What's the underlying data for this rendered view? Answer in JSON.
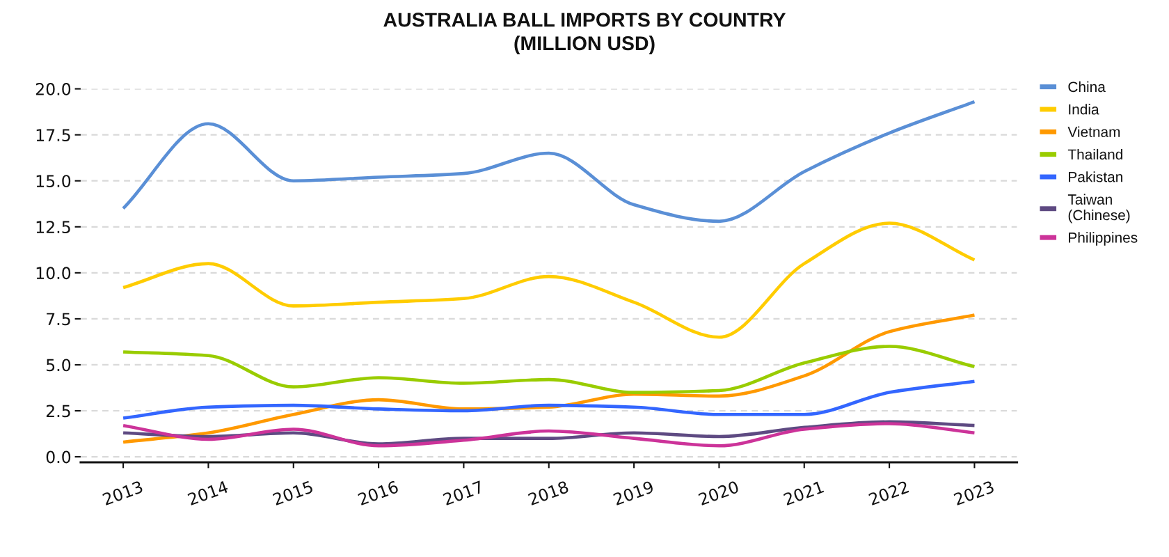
{
  "chart_data": {
    "type": "line",
    "title": "AUSTRALIA BALL IMPORTS BY COUNTRY\n(MILLION USD)",
    "categories": [
      "2013",
      "2014",
      "2015",
      "2016",
      "2017",
      "2018",
      "2019",
      "2020",
      "2021",
      "2022",
      "2023"
    ],
    "series": [
      {
        "name": "China",
        "color": "#5a8fd6",
        "values": [
          13.5,
          18.1,
          15.0,
          15.2,
          15.4,
          16.5,
          13.7,
          12.8,
          15.5,
          17.6,
          19.3
        ]
      },
      {
        "name": "India",
        "color": "#ffcc00",
        "values": [
          9.2,
          10.5,
          8.2,
          8.4,
          8.6,
          9.8,
          8.4,
          6.5,
          10.5,
          12.7,
          10.7
        ]
      },
      {
        "name": "Vietnam",
        "color": "#ff9900",
        "values": [
          0.8,
          1.3,
          2.3,
          3.1,
          2.6,
          2.7,
          3.4,
          3.3,
          4.4,
          6.8,
          7.7
        ]
      },
      {
        "name": "Thailand",
        "color": "#99cc00",
        "values": [
          5.7,
          5.5,
          3.8,
          4.3,
          4.0,
          4.2,
          3.5,
          3.6,
          5.1,
          6.0,
          4.9
        ]
      },
      {
        "name": "Pakistan",
        "color": "#3366ff",
        "values": [
          2.1,
          2.7,
          2.8,
          2.6,
          2.5,
          2.8,
          2.7,
          2.3,
          2.3,
          3.5,
          4.1
        ]
      },
      {
        "name": "Taiwan\n(Chinese)",
        "color": "#5e4a82",
        "values": [
          1.3,
          1.1,
          1.3,
          0.7,
          1.0,
          1.0,
          1.3,
          1.1,
          1.6,
          1.9,
          1.7
        ]
      },
      {
        "name": "Philippines",
        "color": "#cc3399",
        "values": [
          1.7,
          0.95,
          1.5,
          0.6,
          0.9,
          1.4,
          1.0,
          0.6,
          1.5,
          1.8,
          1.3
        ]
      }
    ],
    "ylim": [
      -0.3,
      20
    ],
    "yticks": [
      {
        "value": 0,
        "label": "0.0"
      },
      {
        "value": 2.5,
        "label": "2.5"
      },
      {
        "value": 5,
        "label": "5.0"
      },
      {
        "value": 7.5,
        "label": "7.5"
      },
      {
        "value": 10,
        "label": "10.0"
      },
      {
        "value": 12.5,
        "label": "12.5"
      },
      {
        "value": 15,
        "label": "15.0"
      },
      {
        "value": 17.5,
        "label": "17.5"
      },
      {
        "value": 20,
        "label": "20.0"
      }
    ],
    "grid": "y",
    "legend": "top right",
    "line_style": "solid"
  }
}
